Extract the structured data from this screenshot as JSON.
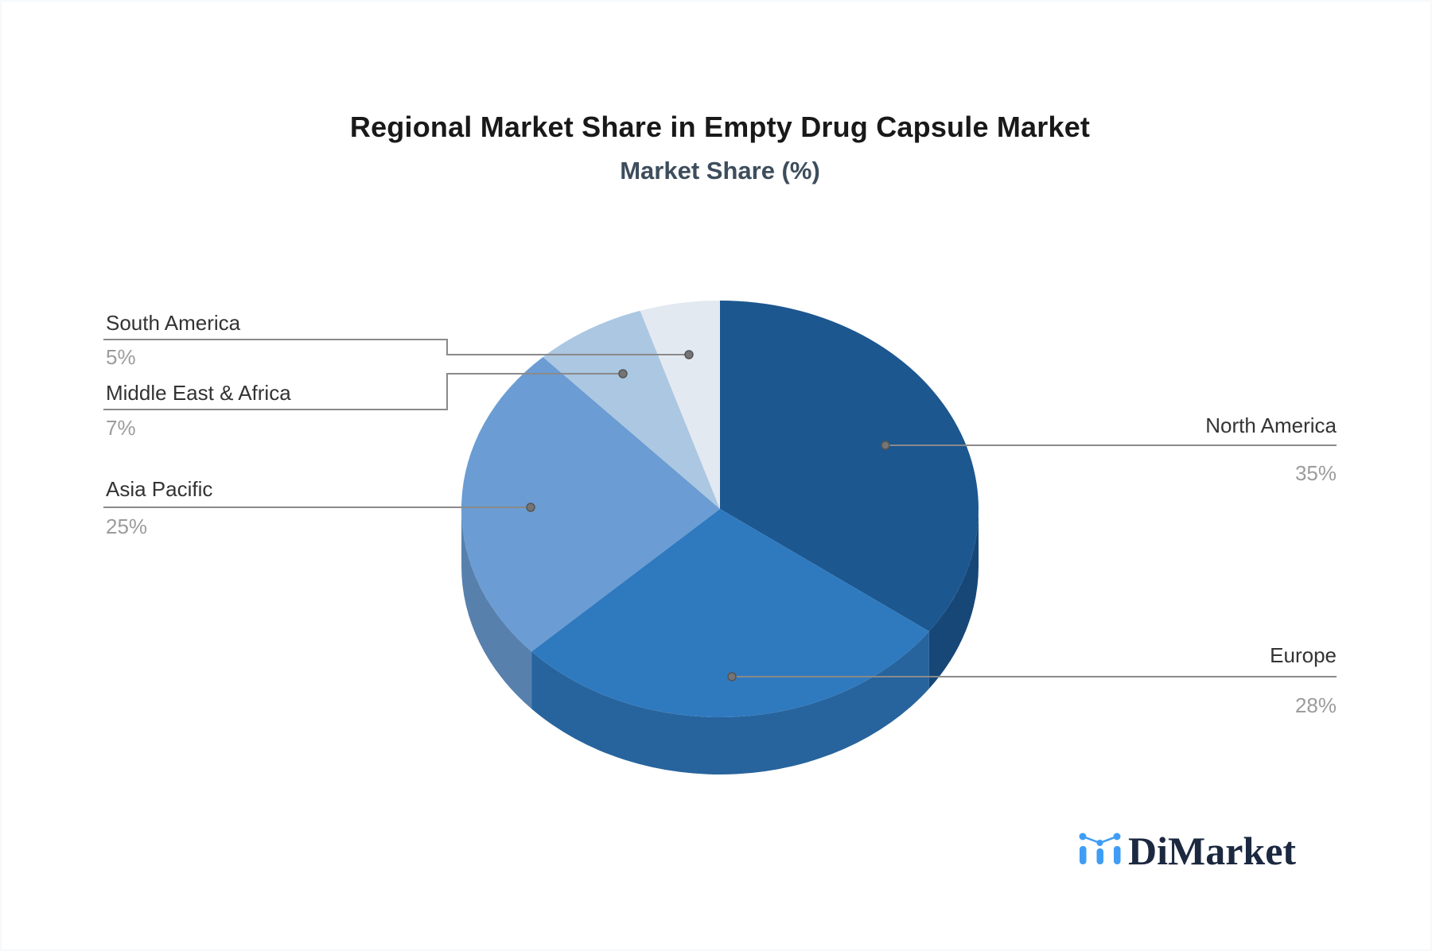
{
  "chart_data": {
    "type": "pie",
    "title": "Regional Market Share in Empty Drug Capsule Market",
    "subtitle": "Market Share (%)",
    "unit": "%",
    "style_3d": true,
    "start_angle_deg": 0,
    "direction": "clockwise",
    "slices": [
      {
        "label": "North America",
        "value": 35,
        "display": "35%",
        "color": "#1c5790"
      },
      {
        "label": "Europe",
        "value": 28,
        "display": "28%",
        "color": "#2f7abf"
      },
      {
        "label": "Asia Pacific",
        "value": 25,
        "display": "25%",
        "color": "#6b9cd3"
      },
      {
        "label": "Middle East & Africa",
        "value": 7,
        "display": "7%",
        "color": "#abc7e2"
      },
      {
        "label": "South America",
        "value": 5,
        "display": "5%",
        "color": "#e3e9f1"
      }
    ],
    "label_text_color": "#333333",
    "value_text_color": "#9c9c9c",
    "leader_line_color": "#8a8a8a",
    "legend_position": "none",
    "grid": false
  },
  "logo": {
    "text": "DiMarket",
    "text_color": "#1b2840",
    "icon_color": "#3f9df5",
    "icon": "bar-line-chart-icon"
  }
}
